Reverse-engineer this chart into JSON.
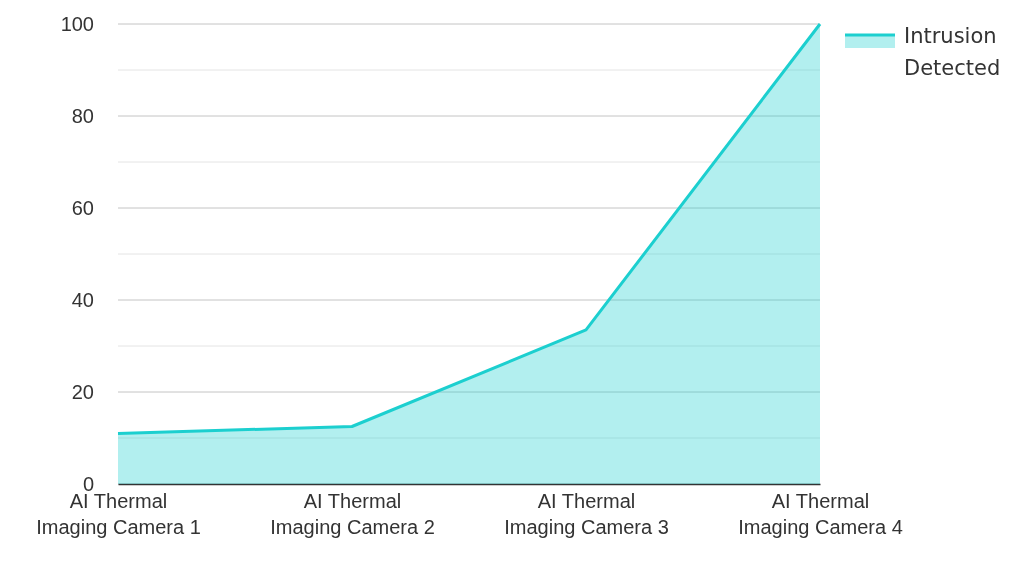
{
  "chart_data": {
    "type": "area",
    "categories": [
      "AI Thermal Imaging Camera 1",
      "AI Thermal Imaging Camera 2",
      "AI Thermal Imaging Camera 3",
      "AI Thermal Imaging Camera 4"
    ],
    "series": [
      {
        "name": "Intrusion Detected",
        "color": "#1ccfcf",
        "values": [
          11,
          12.5,
          33.5,
          100
        ]
      }
    ],
    "ylim": [
      0,
      100
    ],
    "yticks": [
      0,
      {
        "value": 10,
        "label": null
      },
      20,
      {
        "value": 30,
        "label": null
      },
      40,
      {
        "value": 50,
        "label": null
      },
      60,
      {
        "value": 70,
        "label": null
      },
      80,
      {
        "value": 90,
        "label": null
      },
      100
    ],
    "grid": true,
    "legend": "top right"
  }
}
